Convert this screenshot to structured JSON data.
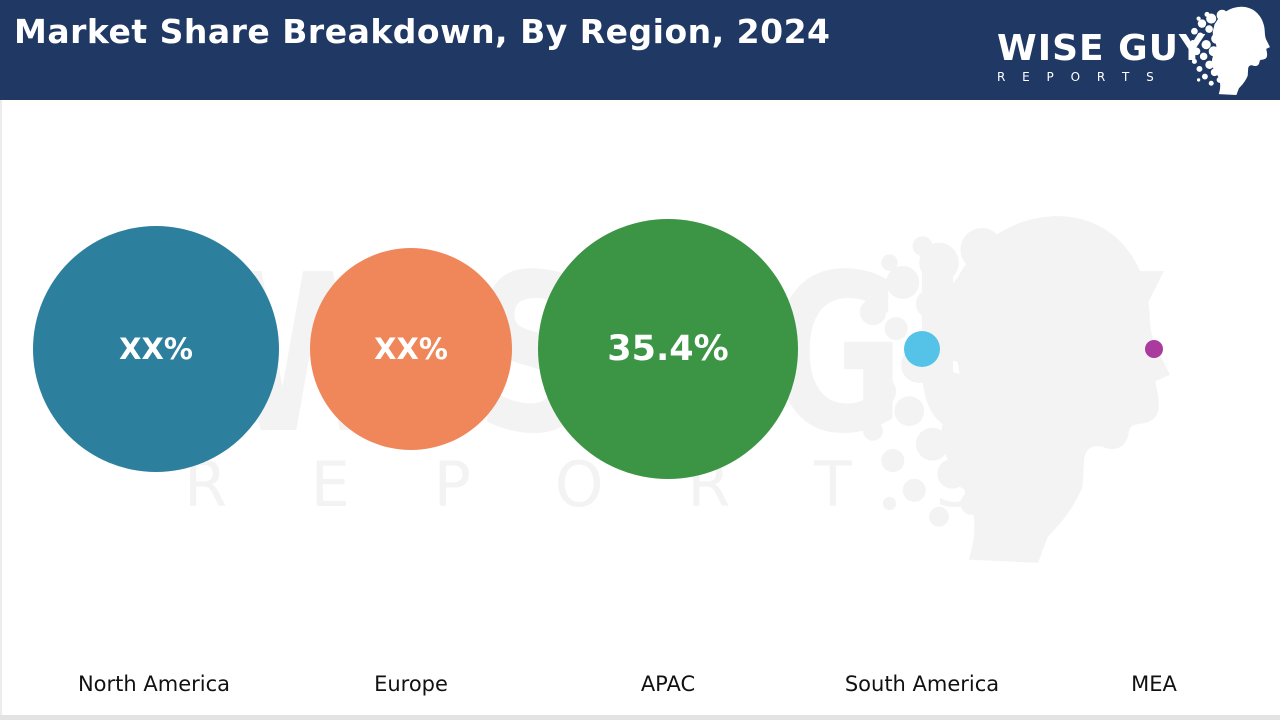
{
  "header": {
    "title": "Market Share Breakdown, By Region, 2024",
    "background_color": "#1f3864",
    "logo": {
      "name": "WISE GUY",
      "subtext": "R E P O R T S",
      "icon": "dotted-head-profile-icon"
    }
  },
  "watermark": {
    "line1": "WISE GUY",
    "line2": "R E P O R T S",
    "icon": "dotted-head-profile-icon",
    "color": "#f3f3f3"
  },
  "chart_data": {
    "type": "bubble",
    "title": "Market Share Breakdown, By Region, 2024",
    "categories": [
      "North America",
      "Europe",
      "APAC",
      "South America",
      "MEA"
    ],
    "series": [
      {
        "name": "North America",
        "label": "XX%",
        "value": null,
        "color": "#2d7f9e",
        "radius_px": 123
      },
      {
        "name": "Europe",
        "label": "XX%",
        "value": null,
        "color": "#f0875b",
        "radius_px": 101
      },
      {
        "name": "APAC",
        "label": "35.4%",
        "value": 35.4,
        "color": "#3b9544",
        "radius_px": 130
      },
      {
        "name": "South America",
        "label": "",
        "value": null,
        "color": "#55c3e8",
        "radius_px": 18
      },
      {
        "name": "MEA",
        "label": "",
        "value": null,
        "color": "#aa3a9d",
        "radius_px": 9
      }
    ],
    "legend_position": "bottom-labels",
    "grid": false,
    "value_label_color": "#ffffff"
  }
}
